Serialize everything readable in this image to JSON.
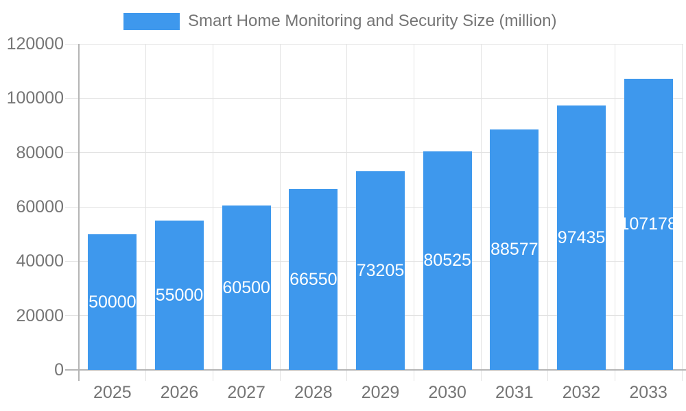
{
  "chart_data": {
    "type": "bar",
    "title": "Smart Home Monitoring and Security Size (million)",
    "legend": {
      "label": "Smart Home Monitoring and Security Size (million)",
      "position": "top"
    },
    "categories": [
      "2025",
      "2026",
      "2027",
      "2028",
      "2029",
      "2030",
      "2031",
      "2032",
      "2033"
    ],
    "values": [
      50000,
      55000,
      60500,
      66550,
      73205,
      80525,
      88577,
      97435,
      107178
    ],
    "bar_labels": [
      "50000",
      "55000",
      "60500",
      "66550",
      "73205",
      "80525",
      "88577",
      "97435",
      "107178"
    ],
    "xlabel": "",
    "ylabel": "",
    "ylim": [
      0,
      120000
    ],
    "ytick_step": 20000,
    "ytick_labels": [
      "0",
      "20000",
      "40000",
      "60000",
      "80000",
      "100000",
      "120000"
    ],
    "grid": "horizontal and vertical gridlines on",
    "colors": {
      "bar": "#3E98ED",
      "axis": "#B5B5B5",
      "grid": "#E2E2E2",
      "tick_text": "#757575",
      "bar_label_text": "#FFFFFF",
      "background": "#FFFFFF"
    }
  }
}
